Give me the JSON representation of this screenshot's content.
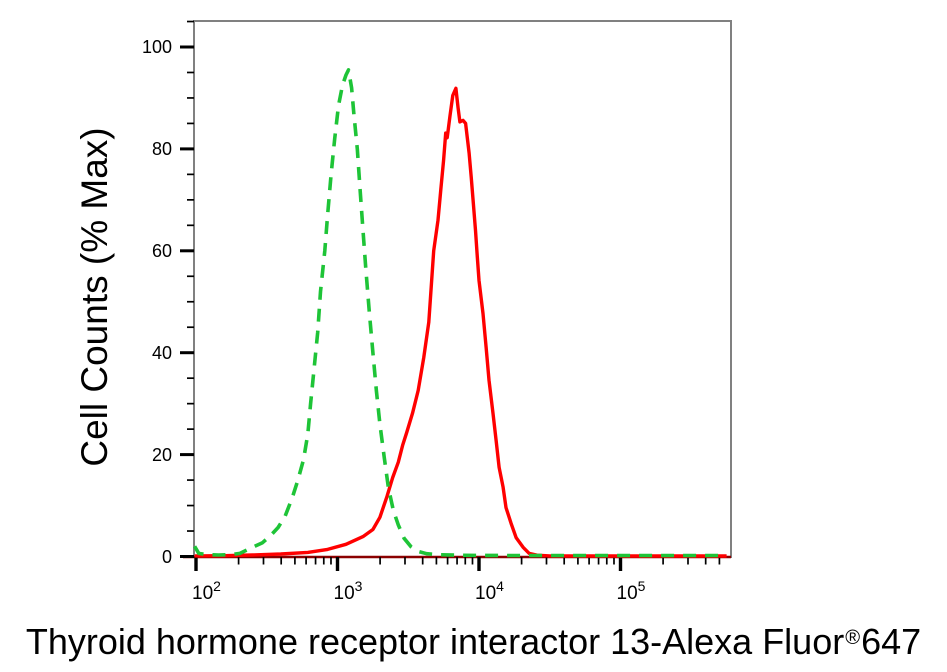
{
  "figure": {
    "y_axis_title": "Cell Counts (% Max)",
    "x_axis_title_prefix": "Thyroid hormone receptor interactor 13-Alexa Fluor",
    "x_axis_title_reg": "®",
    "x_axis_title_suffix": "647"
  },
  "chart_data": {
    "type": "line",
    "subtype": "flow-cytometry-histogram",
    "title": "",
    "xlabel": "Thyroid hormone receptor interactor 13-Alexa Fluor® 647",
    "ylabel": "Cell Counts (% Max)",
    "x_scale": "log10",
    "x_range_log": [
      1.986,
      5.754
    ],
    "y_range": [
      0,
      105
    ],
    "grid": false,
    "legend": "none",
    "frame_color": "#808080",
    "tick_color": "#000000",
    "baseline_color": "#8b0000",
    "x_ticks": [
      {
        "log": 2,
        "base": "10",
        "exp": "2"
      },
      {
        "log": 3,
        "base": "10",
        "exp": "3"
      },
      {
        "log": 4,
        "base": "10",
        "exp": "4"
      },
      {
        "log": 5,
        "base": "10",
        "exp": "5"
      }
    ],
    "x_minor_ticks_log": [
      2.301,
      2.477,
      2.602,
      2.699,
      2.778,
      2.845,
      2.903,
      2.954,
      3.301,
      3.477,
      3.602,
      3.699,
      3.778,
      3.845,
      3.903,
      3.954,
      4.301,
      4.477,
      4.602,
      4.699,
      4.778,
      4.845,
      4.903,
      4.954,
      5.301,
      5.477,
      5.602,
      5.699
    ],
    "y_ticks": [
      {
        "value": 0,
        "label": "0"
      },
      {
        "value": 20,
        "label": "20"
      },
      {
        "value": 40,
        "label": "40"
      },
      {
        "value": 60,
        "label": "60"
      },
      {
        "value": 80,
        "label": "80"
      },
      {
        "value": 100,
        "label": "100"
      }
    ],
    "y_minor_tick_values": [
      5,
      10,
      15,
      25,
      30,
      35,
      45,
      50,
      55,
      65,
      70,
      75,
      85,
      90,
      95,
      105
    ],
    "series": [
      {
        "id": "green-dashed",
        "style": "dashed",
        "color": "#1ec437",
        "stroke_width": 3.6,
        "dash_pattern": [
          13,
          9
        ],
        "peak": {
          "x": 1200,
          "y_percent": 95.5
        },
        "points": [
          [
            1.99,
            2.0
          ],
          [
            2.02,
            0.6
          ],
          [
            2.08,
            0.35
          ],
          [
            2.16,
            0.3
          ],
          [
            2.24,
            0.35
          ],
          [
            2.31,
            0.6
          ],
          [
            2.4,
            1.8
          ],
          [
            2.47,
            2.7
          ],
          [
            2.53,
            4.2
          ],
          [
            2.58,
            5.7
          ],
          [
            2.63,
            7.9
          ],
          [
            2.68,
            11.5
          ],
          [
            2.72,
            15.0
          ],
          [
            2.76,
            19.0
          ],
          [
            2.79,
            24.0
          ],
          [
            2.81,
            30.0
          ],
          [
            2.83,
            35.5
          ],
          [
            2.86,
            44.0
          ],
          [
            2.88,
            52.0
          ],
          [
            2.91,
            60.0
          ],
          [
            2.93,
            67.0
          ],
          [
            2.955,
            75.0
          ],
          [
            2.98,
            82.0
          ],
          [
            3.007,
            88.5
          ],
          [
            3.035,
            92.5
          ],
          [
            3.06,
            94.5
          ],
          [
            3.078,
            95.5
          ],
          [
            3.1,
            92.0
          ],
          [
            3.115,
            87.0
          ],
          [
            3.14,
            80.0
          ],
          [
            3.16,
            72.0
          ],
          [
            3.18,
            64.0
          ],
          [
            3.2,
            56.5
          ],
          [
            3.225,
            48.0
          ],
          [
            3.25,
            40.0
          ],
          [
            3.275,
            32.5
          ],
          [
            3.3,
            26.0
          ],
          [
            3.33,
            19.5
          ],
          [
            3.36,
            13.5
          ],
          [
            3.395,
            9.0
          ],
          [
            3.43,
            6.2
          ],
          [
            3.47,
            3.6
          ],
          [
            3.52,
            1.9
          ],
          [
            3.57,
            1.0
          ],
          [
            3.63,
            0.55
          ],
          [
            3.72,
            0.35
          ],
          [
            3.85,
            0.25
          ],
          [
            4.0,
            0.22
          ],
          [
            4.2,
            0.2
          ],
          [
            4.4,
            0.2
          ],
          [
            4.6,
            0.2
          ],
          [
            4.8,
            0.2
          ],
          [
            5.0,
            0.2
          ],
          [
            5.2,
            0.2
          ],
          [
            5.4,
            0.2
          ],
          [
            5.6,
            0.2
          ],
          [
            5.75,
            0.2
          ]
        ]
      },
      {
        "id": "red-solid",
        "style": "solid",
        "color": "#ff0000",
        "stroke_width": 3.4,
        "dash_pattern": null,
        "peak": {
          "x": 6600,
          "y_percent": 92
        },
        "points": [
          [
            1.99,
            0.12
          ],
          [
            2.2,
            0.15
          ],
          [
            2.4,
            0.3
          ],
          [
            2.6,
            0.5
          ],
          [
            2.79,
            0.8
          ],
          [
            2.93,
            1.4
          ],
          [
            3.06,
            2.4
          ],
          [
            3.18,
            3.9
          ],
          [
            3.25,
            5.3
          ],
          [
            3.3,
            7.7
          ],
          [
            3.35,
            11.8
          ],
          [
            3.39,
            15.5
          ],
          [
            3.43,
            18.5
          ],
          [
            3.46,
            21.8
          ],
          [
            3.49,
            24.4
          ],
          [
            3.53,
            28.1
          ],
          [
            3.57,
            32.6
          ],
          [
            3.61,
            39.1
          ],
          [
            3.645,
            46.0
          ],
          [
            3.665,
            54.0
          ],
          [
            3.68,
            60.0
          ],
          [
            3.71,
            66.0
          ],
          [
            3.73,
            72.0
          ],
          [
            3.75,
            77.8
          ],
          [
            3.765,
            83.1
          ],
          [
            3.775,
            82.2
          ],
          [
            3.795,
            86.5
          ],
          [
            3.815,
            90.5
          ],
          [
            3.837,
            91.9
          ],
          [
            3.852,
            88.0
          ],
          [
            3.865,
            85.3
          ],
          [
            3.887,
            85.6
          ],
          [
            3.905,
            85.0
          ],
          [
            3.93,
            79.2
          ],
          [
            3.945,
            74.5
          ],
          [
            3.96,
            69.4
          ],
          [
            3.975,
            64.0
          ],
          [
            3.987,
            59.1
          ],
          [
            4.0,
            54.2
          ],
          [
            4.028,
            47.7
          ],
          [
            4.05,
            41.1
          ],
          [
            4.071,
            34.6
          ],
          [
            4.099,
            28.1
          ],
          [
            4.121,
            22.8
          ],
          [
            4.142,
            17.5
          ],
          [
            4.17,
            13.6
          ],
          [
            4.191,
            9.6
          ],
          [
            4.227,
            6.5
          ],
          [
            4.262,
            3.7
          ],
          [
            4.312,
            1.8
          ],
          [
            4.355,
            0.6
          ],
          [
            4.41,
            0.25
          ],
          [
            4.5,
            0.12
          ],
          [
            4.8,
            0.1
          ],
          [
            5.2,
            0.1
          ],
          [
            5.6,
            0.1
          ],
          [
            5.75,
            0.1
          ]
        ]
      }
    ]
  }
}
